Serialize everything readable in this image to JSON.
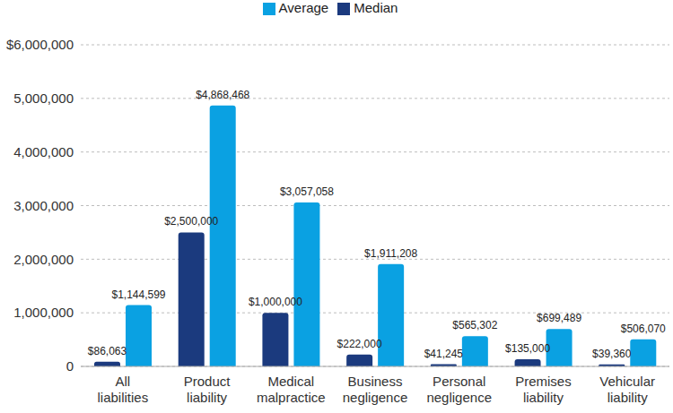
{
  "chart_data": {
    "type": "bar",
    "categories": [
      "All liabilities",
      "Product liability",
      "Medical malpractice",
      "Business negligence",
      "Personal negligence",
      "Premises liability",
      "Vehicular liability"
    ],
    "series": [
      {
        "name": "Median",
        "color": "#1b3a7e",
        "values": [
          86063,
          2500000,
          1000000,
          222000,
          41245,
          135000,
          39360
        ],
        "value_labels": [
          "$86,063",
          "$2,500,000",
          "$1,000,000",
          "$222,000",
          "$41,245",
          "$135,000",
          "$39,360"
        ]
      },
      {
        "name": "Average",
        "color": "#0aa1e2",
        "values": [
          1144599,
          4868468,
          3057058,
          1911208,
          565302,
          699489,
          506070
        ],
        "value_labels": [
          "$1,144,599",
          "$4,868,468",
          "$3,057,058",
          "$1,911,208",
          "$565,302",
          "$699,489",
          "$506,070"
        ]
      }
    ],
    "ylim": [
      0,
      6000000
    ],
    "yticks": [
      0,
      {
        "value": 1000000,
        "label": "1,000,000"
      },
      {
        "value": 2000000,
        "label": "2,000,000"
      },
      {
        "value": 3000000,
        "label": "3,000,000"
      },
      {
        "value": 4000000,
        "label": "4,000,000"
      },
      {
        "value": 5000000,
        "label": "5,000,000"
      },
      {
        "value": 6000000,
        "label": "$6,000,000"
      }
    ],
    "grid": true,
    "legend": "top",
    "data_labels": true
  }
}
